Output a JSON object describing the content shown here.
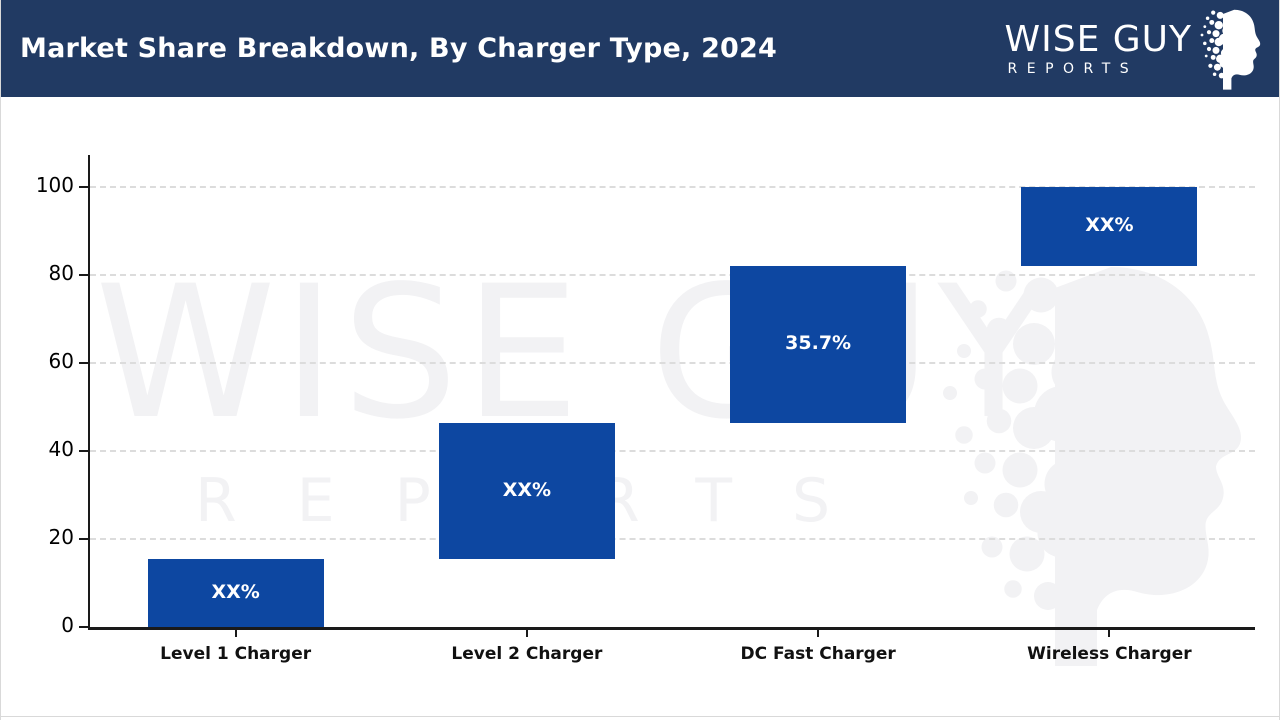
{
  "header": {
    "title": "Market Share Breakdown, By Charger Type, 2024",
    "logo": {
      "name": "WISE GUY",
      "sub": "REPORTS"
    }
  },
  "watermark": {
    "line1": "WISE GUY",
    "line2": "REPORTS"
  },
  "colors": {
    "header_bg": "#213a63",
    "bar_fill": "#0d47a1",
    "bar_label_text": "#ffffff",
    "axis": "#1a1a1a",
    "gridline": "#dcdcdc",
    "tick_label": "#000000",
    "watermark": "#f2f2f4"
  },
  "chart_data": {
    "type": "bar",
    "variant": "waterfall",
    "title": "Market Share Breakdown, By Charger Type, 2024",
    "categories": [
      "Level 1 Charger",
      "Level 2 Charger",
      "DC Fast Charger",
      "Wireless Charger"
    ],
    "segments": [
      {
        "category": "Level 1 Charger",
        "start": 0,
        "end": 15.5,
        "value": 15.5,
        "label": "XX%"
      },
      {
        "category": "Level 2 Charger",
        "start": 15.5,
        "end": 46.4,
        "value": 30.9,
        "label": "XX%"
      },
      {
        "category": "DC Fast Charger",
        "start": 46.4,
        "end": 82.1,
        "value": 35.7,
        "label": "35.7%"
      },
      {
        "category": "Wireless Charger",
        "start": 82.1,
        "end": 100,
        "value": 17.9,
        "label": "XX%"
      }
    ],
    "yticks": [
      0,
      20,
      40,
      60,
      80,
      100
    ],
    "ylim": [
      0,
      100
    ],
    "xlabel": "",
    "ylabel": "",
    "grid": "horizontal-dashed",
    "legend": false,
    "watermark": "WISE GUY REPORTS"
  }
}
